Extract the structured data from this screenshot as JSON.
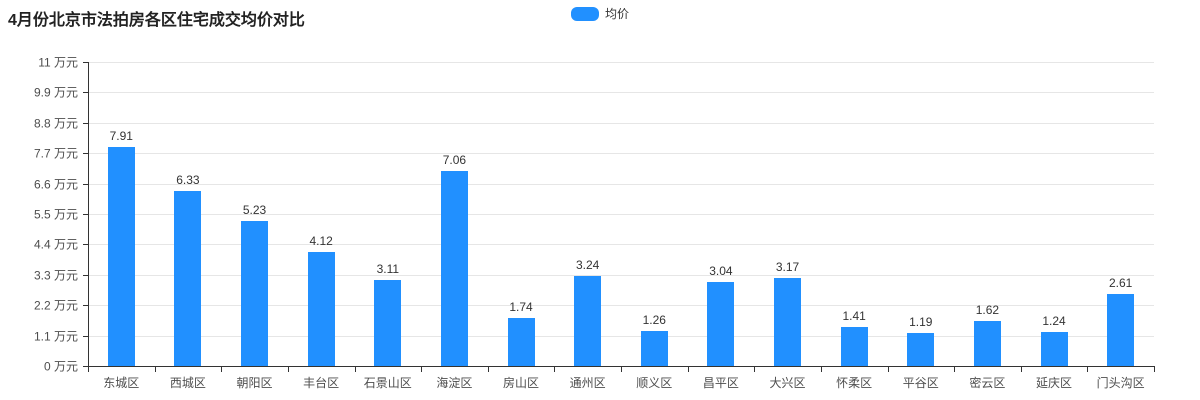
{
  "header": {
    "title": "4月份北京市法拍房各区住宅成交均价对比"
  },
  "legend": {
    "items": [
      {
        "label": "均价",
        "color": "#2190ff"
      }
    ]
  },
  "colors": {
    "bar": "#2190ff",
    "grid_line": "#e6e6e6",
    "axis_line": "#333333",
    "axis_label": "#4d4d4d",
    "value_label": "#333333",
    "title": "#222222"
  },
  "chart_data": {
    "type": "bar",
    "title": "4月份北京市法拍房各区住宅成交均价对比",
    "xlabel": "",
    "ylabel": "万元",
    "categories": [
      "东城区",
      "西城区",
      "朝阳区",
      "丰台区",
      "石景山区",
      "海淀区",
      "房山区",
      "通州区",
      "顺义区",
      "昌平区",
      "大兴区",
      "怀柔区",
      "平谷区",
      "密云区",
      "延庆区",
      "门头沟区"
    ],
    "series": [
      {
        "name": "均价",
        "color": "#2190ff",
        "values": [
          7.91,
          6.33,
          5.23,
          4.12,
          3.11,
          7.06,
          1.74,
          3.24,
          1.26,
          3.04,
          3.17,
          1.41,
          1.19,
          1.62,
          1.24,
          2.61
        ]
      }
    ],
    "value_labels": true,
    "ylim": [
      0,
      11
    ],
    "ytick_step": 1.1,
    "ytick_labels": [
      "0 万元",
      "1.1 万元",
      "2.2 万元",
      "3.3 万元",
      "4.4 万元",
      "5.5 万元",
      "6.6 万元",
      "7.7 万元",
      "8.8 万元",
      "9.9 万元",
      "11 万元"
    ],
    "grid": true,
    "legend_position": "top-center"
  }
}
